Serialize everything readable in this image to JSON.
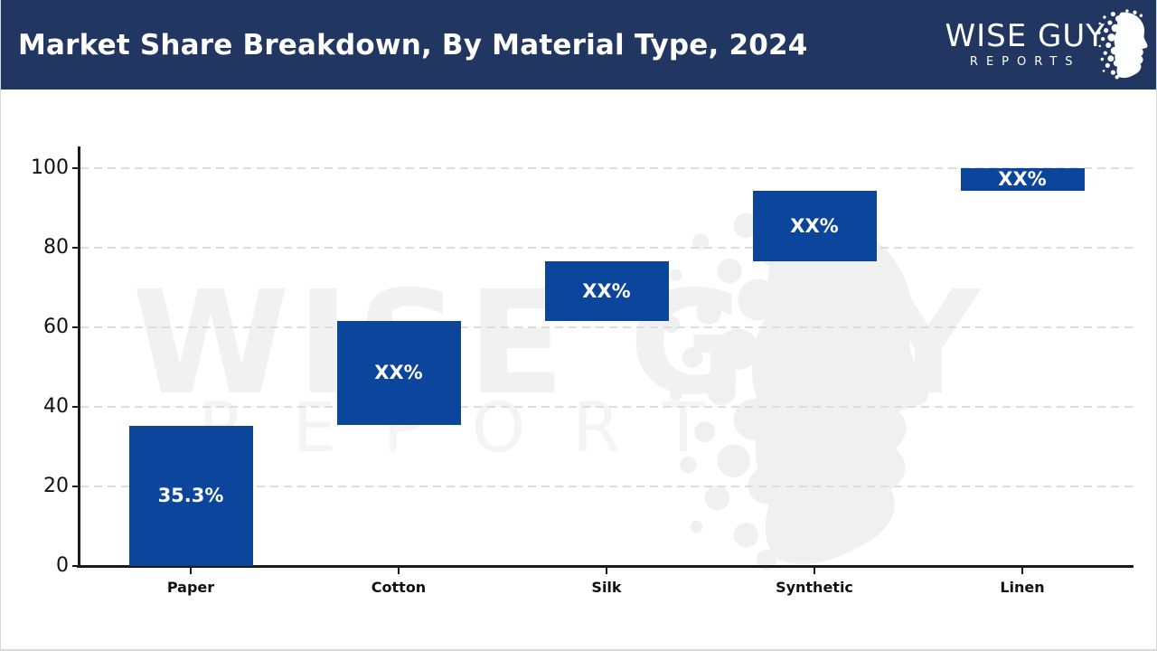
{
  "header": {
    "title": "Market Share Breakdown, By Material Type, 2024",
    "logo": {
      "line1": "WISE GUY",
      "line2": "REPORTS"
    }
  },
  "watermark": {
    "line1": "WISE GUY",
    "line2": "REPORTS"
  },
  "colors": {
    "header_bg": "#213761",
    "bar": "#0b459c",
    "grid": "#dcdcdc",
    "axis": "#1a1a1a"
  },
  "chart_data": {
    "type": "bar",
    "subtype": "waterfall",
    "title": "Market Share Breakdown, By Material Type, 2024",
    "categories": [
      "Paper",
      "Cotton",
      "Silk",
      "Synthetic",
      "Linen"
    ],
    "segments": [
      {
        "category": "Paper",
        "start": 0,
        "end": 35.3,
        "value": 35.3,
        "label": "35.3%"
      },
      {
        "category": "Cotton",
        "start": 35.3,
        "end": 61.6,
        "value": 26.3,
        "label": "XX%"
      },
      {
        "category": "Silk",
        "start": 61.6,
        "end": 76.4,
        "value": 14.8,
        "label": "XX%"
      },
      {
        "category": "Synthetic",
        "start": 76.4,
        "end": 94.1,
        "value": 17.7,
        "label": "XX%"
      },
      {
        "category": "Linen",
        "start": 94.1,
        "end": 100,
        "value": 5.9,
        "label": "XX%"
      }
    ],
    "yticks": [
      0,
      20,
      40,
      60,
      80,
      100
    ],
    "ylim": [
      0,
      105
    ],
    "xlabel": "",
    "ylabel": "",
    "grid": "horizontal-dashed",
    "legend": "none"
  }
}
